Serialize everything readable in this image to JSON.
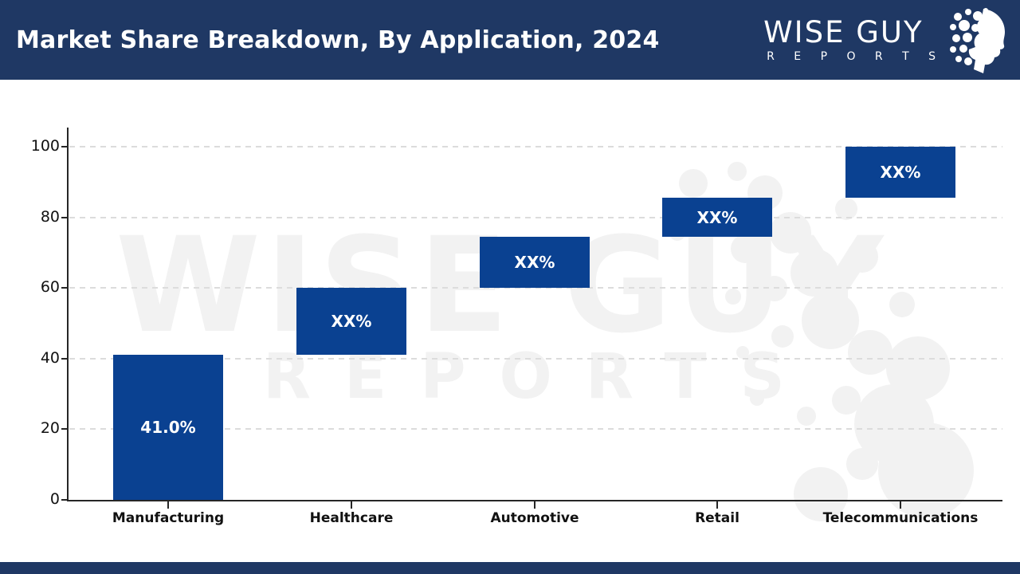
{
  "header": {
    "title": "Market Share Breakdown, By Application, 2024",
    "logo": {
      "line1": "WISE GUY",
      "line2": "R E P O R T S"
    }
  },
  "watermark": {
    "line1": "WISE GUY",
    "line2": "REPORTS"
  },
  "footer": {
    "visible": true
  },
  "colors": {
    "header_bg": "#1f3864",
    "bar": "#0a4191",
    "grid": "#dcdcdc",
    "axis": "#262626",
    "watermark": "#f2f2f2",
    "bar_label": "#ffffff",
    "tick_label": "#111111"
  },
  "chart_data": {
    "type": "bar",
    "subtype": "waterfall",
    "title": "Market Share Breakdown, By Application, 2024",
    "categories": [
      "Manufacturing",
      "Healthcare",
      "Automotive",
      "Retail",
      "Telecommunications"
    ],
    "bars": [
      {
        "label": "Manufacturing",
        "start": 0,
        "end": 41.0,
        "increment": 41.0,
        "value_label": "41.0%"
      },
      {
        "label": "Healthcare",
        "start": 41.0,
        "end": 60.0,
        "increment": 19.0,
        "value_label": "XX%"
      },
      {
        "label": "Automotive",
        "start": 60.0,
        "end": 74.5,
        "increment": 14.5,
        "value_label": "XX%"
      },
      {
        "label": "Retail",
        "start": 74.5,
        "end": 85.5,
        "increment": 11.0,
        "value_label": "XX%"
      },
      {
        "label": "Telecommunications",
        "start": 85.5,
        "end": 100.0,
        "increment": 14.5,
        "value_label": "XX%"
      }
    ],
    "y_ticks": [
      0,
      20,
      40,
      60,
      80,
      100
    ],
    "ylim": [
      0,
      105
    ],
    "xlabel": "",
    "ylabel": "",
    "grid": "dashed horizontal gridlines at y ticks",
    "legend": "none",
    "bar_color": "#0a4191"
  }
}
